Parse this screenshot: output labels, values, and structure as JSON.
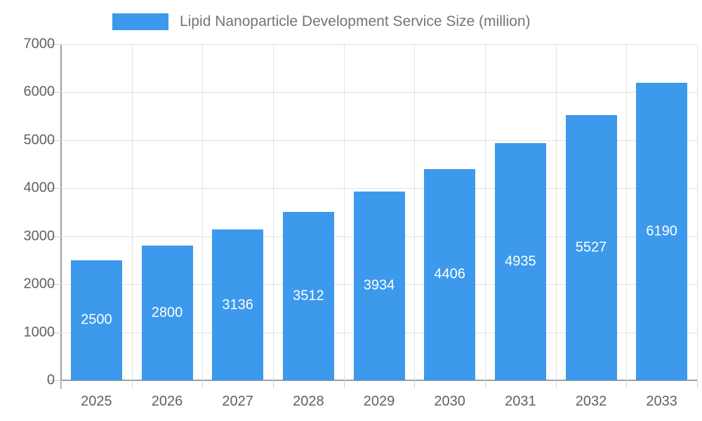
{
  "chart_data": {
    "type": "bar",
    "title": "Lipid Nanoparticle Development Service Size (million)",
    "legend": [
      "Lipid Nanoparticle Development Service Size (million)"
    ],
    "legend_position": "top",
    "categories": [
      "2025",
      "2026",
      "2027",
      "2028",
      "2029",
      "2030",
      "2031",
      "2032",
      "2033"
    ],
    "series": [
      {
        "name": "Lipid Nanoparticle Development Service Size (million)",
        "values": [
          2500,
          2800,
          3136,
          3512,
          3934,
          4406,
          4935,
          5527,
          6190
        ]
      }
    ],
    "value_labels_shown": true,
    "value_label_position": "inside-center",
    "xlabel": "",
    "ylabel": "",
    "ylim": [
      0,
      7000
    ],
    "yticks": [
      0,
      1000,
      2000,
      3000,
      4000,
      5000,
      6000,
      7000
    ],
    "grid": true,
    "colors": {
      "bar": "#3c99ec",
      "value_label": "#ffffff",
      "gridline": "#e2e2e2",
      "axis_line": "#9e9e9e",
      "tick": "#cfcfcf",
      "tick_label": "#616161",
      "legend_text": "#757575",
      "background": "#ffffff"
    }
  }
}
